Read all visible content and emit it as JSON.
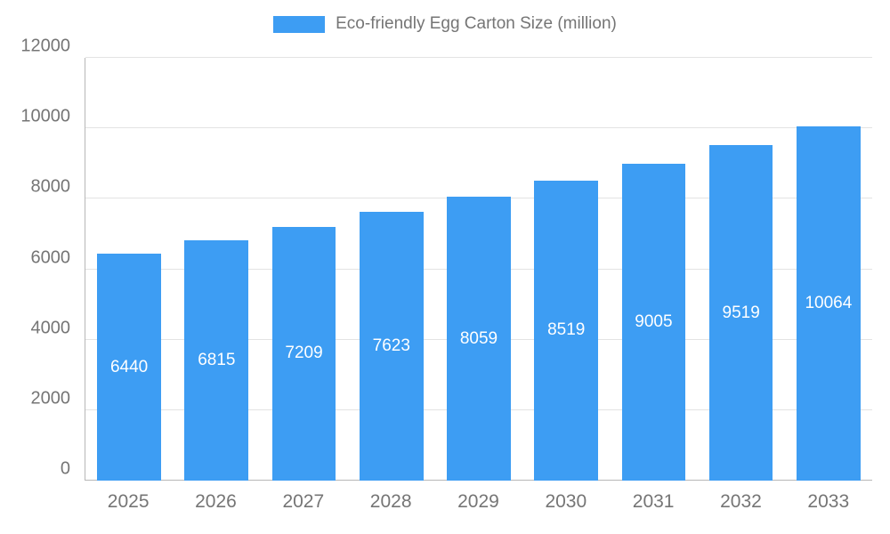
{
  "chart_data": {
    "type": "bar",
    "title": "Eco-friendly Egg Carton Size (million)",
    "categories": [
      "2025",
      "2026",
      "2027",
      "2028",
      "2029",
      "2030",
      "2031",
      "2032",
      "2033"
    ],
    "values": [
      6440,
      6815,
      7209,
      7623,
      8059,
      8519,
      9005,
      9519,
      10064
    ],
    "xlabel": "",
    "ylabel": "",
    "ylim": [
      0,
      12000
    ],
    "yticks": [
      0,
      2000,
      4000,
      6000,
      8000,
      10000,
      12000
    ],
    "bar_color": "#3d9df3",
    "grid": true,
    "legend_position": "top",
    "value_label_color": "#ffffff"
  }
}
